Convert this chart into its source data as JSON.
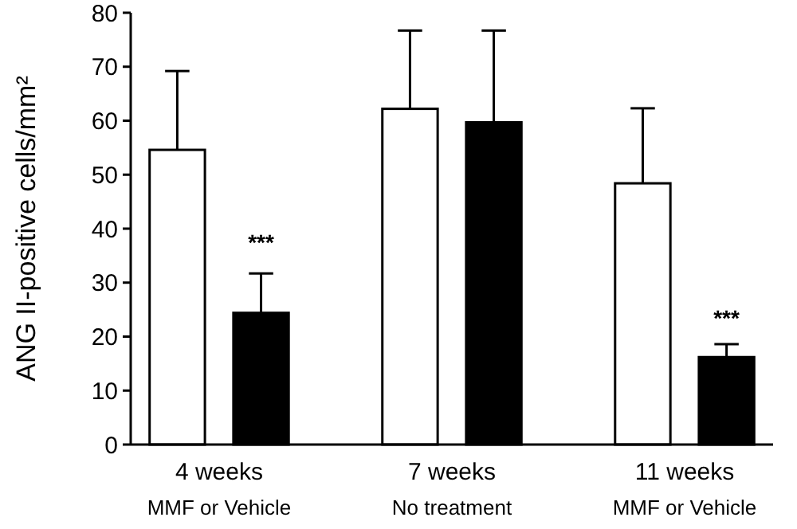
{
  "chart_data": {
    "type": "bar",
    "ylabel": "ANG II-positive cells/mm²",
    "categories": [
      "4 weeks\nMMF or Vehicle",
      "7 weeks\nNo treatment",
      "11 weeks\nMMF or Vehicle"
    ],
    "series": [
      {
        "color": "#ffffff",
        "values": [
          54.6,
          62.2,
          48.4
        ],
        "errors": [
          [
            54.6,
            69.2
          ],
          [
            62.2,
            76.7
          ],
          [
            48.4,
            62.3
          ]
        ]
      },
      {
        "color": "#000000",
        "values": [
          24.4,
          59.7,
          16.2
        ],
        "errors": [
          [
            24.4,
            31.7
          ],
          [
            59.7,
            76.7
          ],
          [
            16.2,
            18.6
          ]
        ]
      }
    ],
    "ylim": [
      0,
      80
    ],
    "yticks": [
      0,
      10,
      20,
      30,
      40,
      50,
      60,
      70,
      80
    ],
    "grid": false,
    "annotations": [
      "***",
      "***"
    ]
  }
}
